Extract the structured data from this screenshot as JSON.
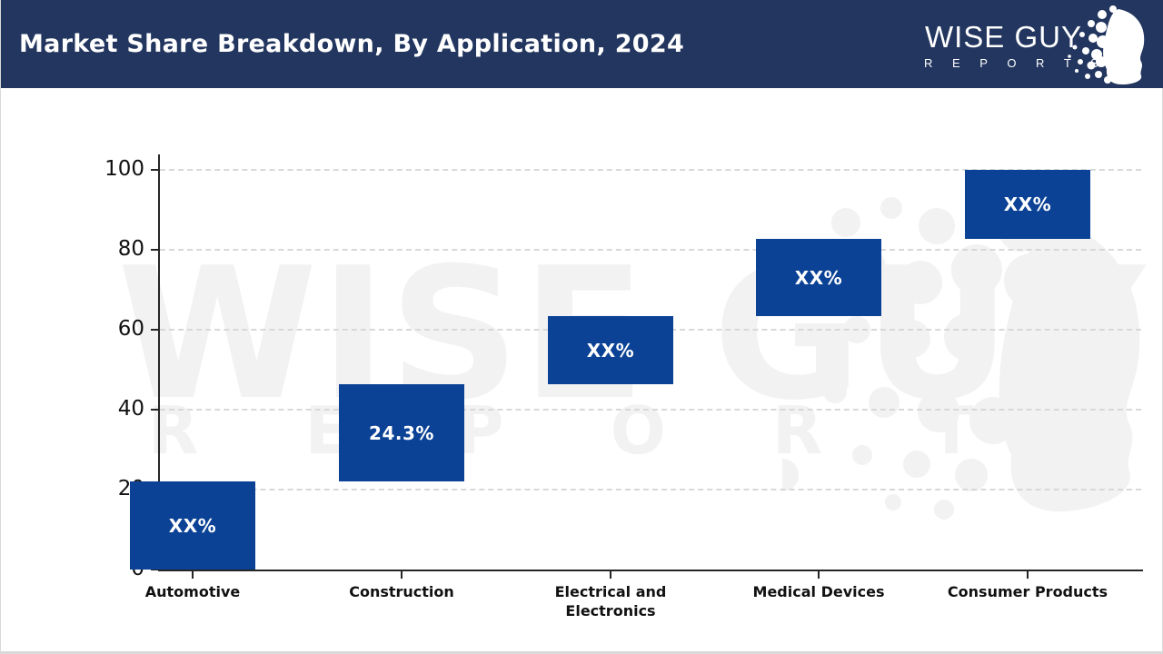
{
  "header": {
    "title": "Market Share Breakdown, By Application, 2024",
    "bg_color": "#22365f",
    "logo": {
      "line1": "WISE GUY",
      "line2": "R E P O R T S",
      "head_icon": "dotted-head-profile"
    }
  },
  "watermark": {
    "line1": "WISE GUY",
    "line2": "R E P O R T S",
    "color": "#f2f2f2",
    "head_icon": "dotted-head-profile"
  },
  "chart_data": {
    "type": "bar",
    "subtype": "waterfall",
    "title": "Market Share Breakdown, By Application, 2024",
    "categories": [
      "Automotive",
      "Construction",
      "Electrical and Electronics",
      "Medical Devices",
      "Consumer Products"
    ],
    "category_label_lines": [
      [
        "Automotive"
      ],
      [
        "Construction"
      ],
      [
        "Electrical and",
        "Electronics"
      ],
      [
        "Medical Devices"
      ],
      [
        "Consumer Products"
      ]
    ],
    "segments": [
      {
        "category": "Automotive",
        "start": 0,
        "end": 22,
        "label": "XX%"
      },
      {
        "category": "Construction",
        "start": 22,
        "end": 46.3,
        "label": "24.3%"
      },
      {
        "category": "Electrical and Electronics",
        "start": 46.3,
        "end": 63.3,
        "label": "XX%"
      },
      {
        "category": "Medical Devices",
        "start": 63.3,
        "end": 82.7,
        "label": "XX%"
      },
      {
        "category": "Consumer Products",
        "start": 82.7,
        "end": 100,
        "label": "XX%"
      }
    ],
    "y_ticks": [
      0,
      20,
      40,
      60,
      80,
      100
    ],
    "ylim": [
      0,
      105
    ],
    "xlabel": "",
    "ylabel": "",
    "legend": "none",
    "grid": "horizontal-dashed",
    "bar_color": "#0b4295",
    "grid_color": "#d8d8d8",
    "axis_color": "#262626"
  }
}
